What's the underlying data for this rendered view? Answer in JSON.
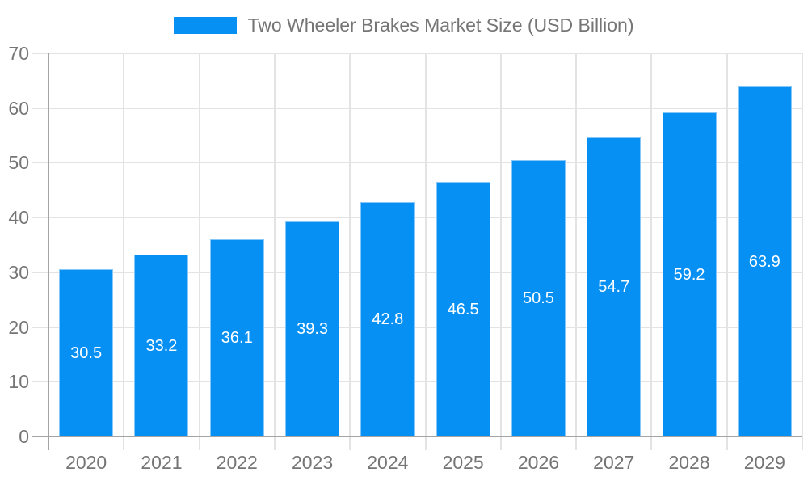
{
  "legend": {
    "series_label": "Two Wheeler Brakes Market Size (USD Billion)"
  },
  "chart_data": {
    "type": "bar",
    "title": "Two Wheeler Brakes Market Size (USD Billion)",
    "categories": [
      "2020",
      "2021",
      "2022",
      "2023",
      "2024",
      "2025",
      "2026",
      "2027",
      "2028",
      "2029"
    ],
    "values": [
      30.5,
      33.2,
      36.1,
      39.3,
      42.8,
      46.5,
      50.5,
      54.7,
      59.2,
      63.9
    ],
    "value_labels": [
      "30.5",
      "33.2",
      "36.1",
      "39.3",
      "42.8",
      "46.5",
      "50.5",
      "54.7",
      "59.2",
      "63.9"
    ],
    "xlabel": "",
    "ylabel": "",
    "ylim": [
      0,
      70
    ],
    "yticks": [
      0,
      10,
      20,
      30,
      40,
      50,
      60,
      70
    ],
    "grid": true,
    "legend_position": "top-center",
    "colors": {
      "bar": "#0790f3",
      "bar_border": "#86c7f9",
      "value_label": "#ffffff",
      "axis": "#a4a4a4",
      "grid": "#e3e3e3",
      "text": "#757575",
      "background": "#ffffff"
    }
  }
}
